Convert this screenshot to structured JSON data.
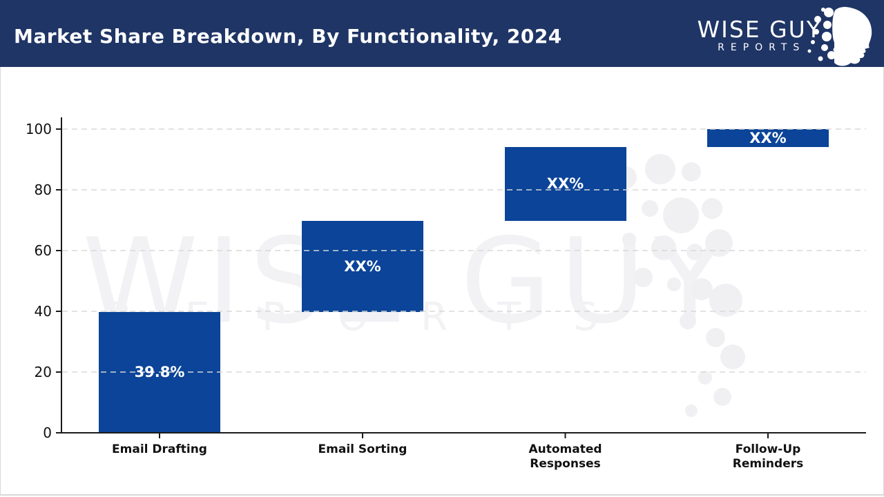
{
  "header": {
    "title": "Market Share Breakdown, By Functionality, 2024",
    "bg_color": "#1f3566",
    "logo": {
      "line1": "WISE GUY",
      "line2": "REPORTS"
    }
  },
  "watermark": {
    "line1": "WISE GUY",
    "line2": "REPORTS"
  },
  "chart_data": {
    "type": "bar",
    "subtype": "stacked-waterfall-percentage",
    "title": "Market Share Breakdown, By Functionality, 2024",
    "categories": [
      "Email Drafting",
      "Email Sorting",
      "Automated Responses",
      "Follow-Up Reminders"
    ],
    "category_display": [
      "Email Drafting",
      "Email Sorting",
      "Automated\nResponses",
      "Follow-Up\nReminders"
    ],
    "segments": [
      {
        "category": "Email Drafting",
        "start": 0,
        "end": 39.8,
        "value": 39.8,
        "label": "39.8%"
      },
      {
        "category": "Email Sorting",
        "start": 39.8,
        "end": 69.8,
        "value": 30.0,
        "label": "XX%"
      },
      {
        "category": "Automated Responses",
        "start": 69.8,
        "end": 94.2,
        "value": 24.4,
        "label": "XX%"
      },
      {
        "category": "Follow-Up Reminders",
        "start": 94.2,
        "end": 100,
        "value": 5.8,
        "label": "XX%"
      }
    ],
    "y_ticks": [
      0,
      20,
      40,
      60,
      80,
      100
    ],
    "ylim": [
      0,
      104
    ],
    "xlabel": "",
    "ylabel": "",
    "grid": "dashed-horizontal-above-bars",
    "legend": "none",
    "bar_color": "#0b4498",
    "bar_label_color": "#ffffff",
    "axis_color": "#1a1a1a",
    "grid_color": "#d8d8d8"
  }
}
